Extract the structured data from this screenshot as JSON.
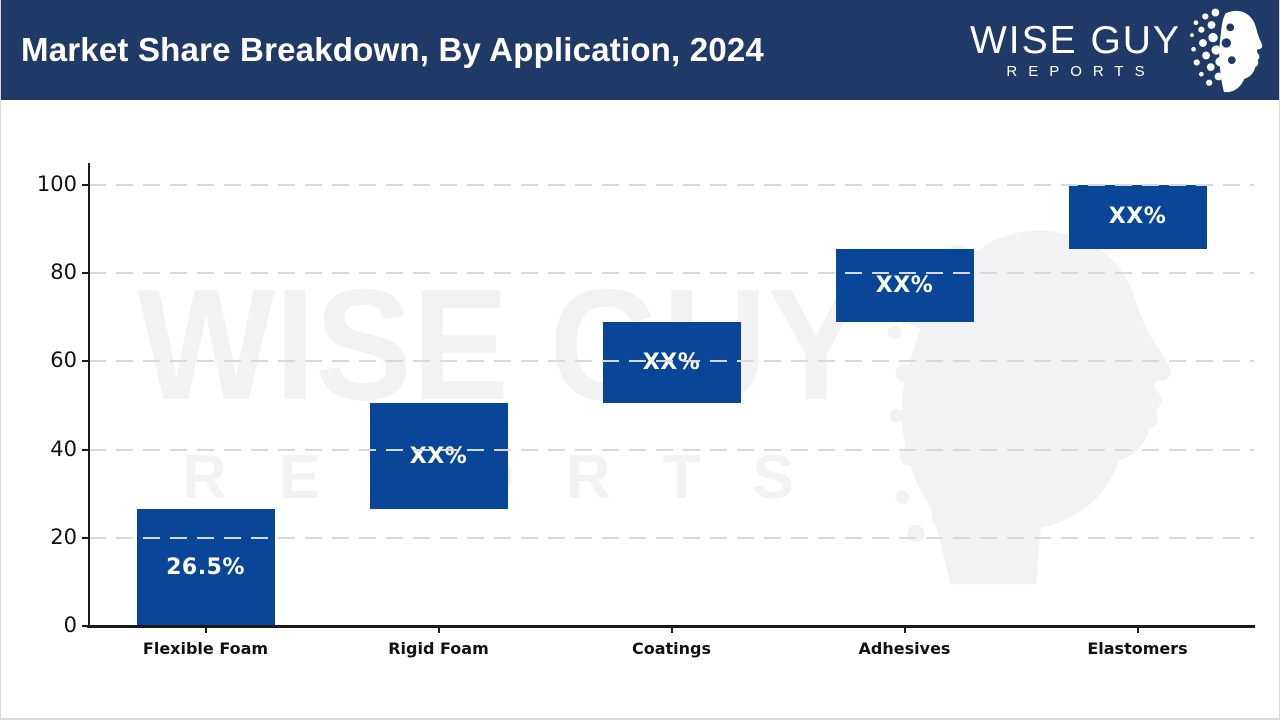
{
  "header": {
    "title": "Market Share Breakdown, By Application, 2024",
    "logo": {
      "line1": "WISE GUY",
      "line2": "REPORTS"
    }
  },
  "watermark": {
    "line1": "WISE GUY",
    "line2": "REPORTS"
  },
  "chart_data": {
    "type": "bar",
    "subtype": "waterfall",
    "title": "Market Share Breakdown, By Application, 2024",
    "categories": [
      "Flexible Foam",
      "Rigid Foam",
      "Coatings",
      "Adhesives",
      "Elastomers"
    ],
    "segments": [
      {
        "category": "Flexible Foam",
        "label": "26.5%",
        "start": 0,
        "end": 26.5
      },
      {
        "category": "Rigid Foam",
        "label": "XX%",
        "start": 26.5,
        "end": 50.5
      },
      {
        "category": "Coatings",
        "label": "XX%",
        "start": 50.5,
        "end": 69.0
      },
      {
        "category": "Adhesives",
        "label": "XX%",
        "start": 69.0,
        "end": 85.5
      },
      {
        "category": "Elastomers",
        "label": "XX%",
        "start": 85.5,
        "end": 100.0
      }
    ],
    "yticks": [
      0,
      20,
      40,
      60,
      80,
      100
    ],
    "ylim": [
      0,
      100
    ],
    "xlabel": "",
    "ylabel": "",
    "grid": "horizontal-dashed",
    "legend": "none",
    "bar_color": "#0a4697",
    "bar_label_color": "#ffffff",
    "grid_color": "#d9d9d9",
    "axis_color": "#1a1a1a"
  },
  "colors": {
    "header_bg": "#1f3a66",
    "page_bg": "#ffffff",
    "watermark": "#f2f2f4",
    "title_text": "#ffffff"
  }
}
